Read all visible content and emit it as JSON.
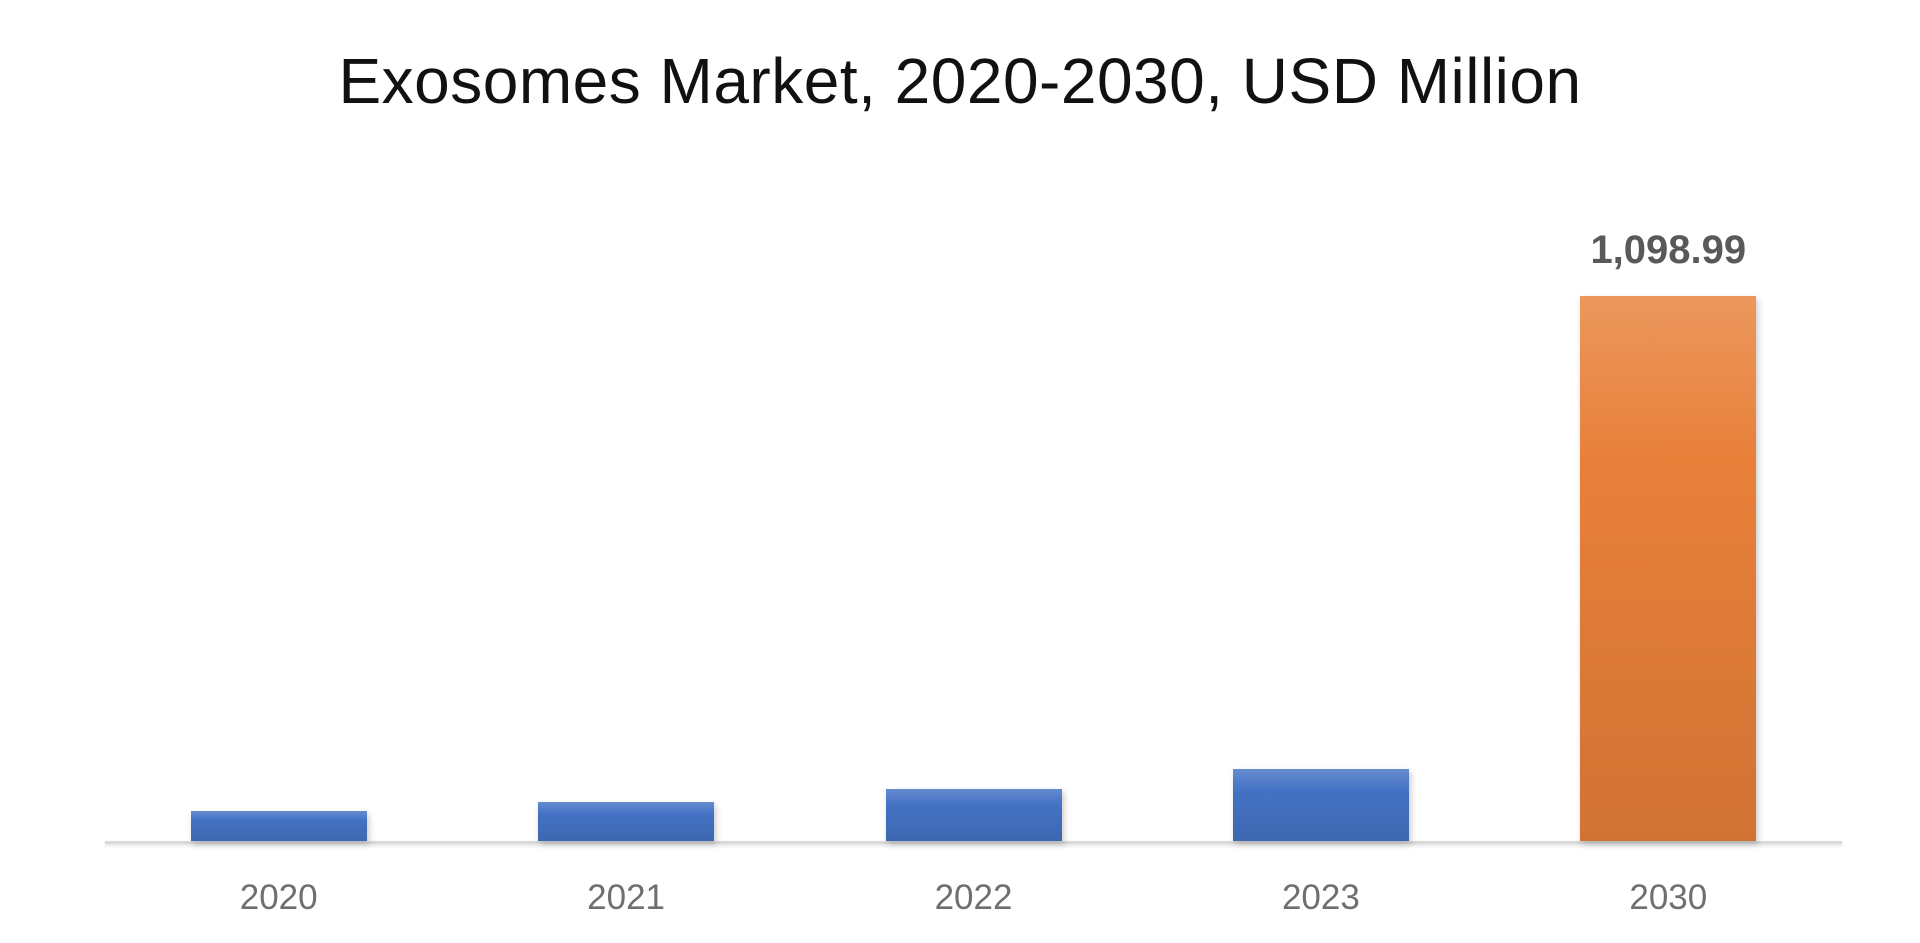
{
  "title": "Exosomes Market, 2020-2030, USD Million",
  "chart_data": {
    "type": "bar",
    "title": "Exosomes Market, 2020-2030, USD Million",
    "unit": "USD Million",
    "categories": [
      "2020",
      "2021",
      "2022",
      "2023",
      "2030"
    ],
    "values": [
      60.5,
      78.6,
      104.9,
      145.2,
      1098.99
    ],
    "values_estimated": [
      true,
      true,
      true,
      true,
      false
    ],
    "value_labels": [
      null,
      null,
      null,
      null,
      "1,098.99"
    ],
    "bar_colors": [
      "#4472C4",
      "#4472C4",
      "#4472C4",
      "#4472C4",
      "#E8803A"
    ],
    "xlabel": "",
    "ylabel": "",
    "ylim": [
      0,
      1200
    ],
    "y_axis_visible": false,
    "x_axis_line_visible": true,
    "grid": false,
    "legend": null,
    "colors": {
      "historical_bar": "#4472C4",
      "forecast_bar": "#E8803A",
      "axis_line": "#D9D9D9",
      "tick_label": "#6F6F6F",
      "value_label": "#595959",
      "title_text": "#111111",
      "background": "#FFFFFF"
    }
  }
}
